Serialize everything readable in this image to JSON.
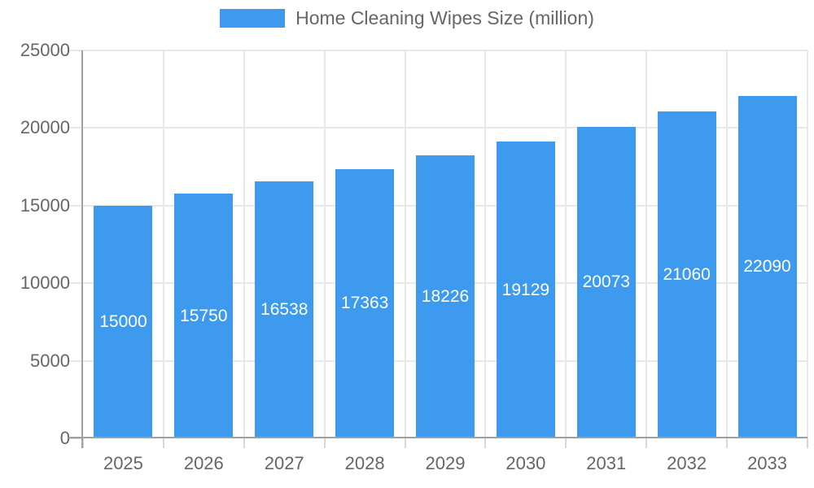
{
  "chart_data": {
    "type": "bar",
    "title": "",
    "legend": "Home Cleaning Wipes Size (million)",
    "series_name": "Home Cleaning Wipes Size (million)",
    "categories": [
      "2025",
      "2026",
      "2027",
      "2028",
      "2029",
      "2030",
      "2031",
      "2032",
      "2033"
    ],
    "values": [
      15000,
      15750,
      16538,
      17363,
      18226,
      19129,
      20073,
      21060,
      22090
    ],
    "data_labels": [
      "15000",
      "15750",
      "16538",
      "17363",
      "18226",
      "19129",
      "20073",
      "21060",
      "22090"
    ],
    "xlabel": "",
    "ylabel": "",
    "ylim": [
      0,
      25000
    ],
    "y_ticks": [
      0,
      5000,
      10000,
      15000,
      20000,
      25000
    ],
    "y_tick_labels": [
      "0",
      "5000",
      "10000",
      "15000",
      "20000",
      "25000"
    ],
    "grid": true,
    "legend_position": "top-center",
    "colors": {
      "bar": "#3D9AEF",
      "bar_label_text": "#FFFFFF",
      "axis_text": "#666666",
      "grid_line": "#E8E8E8",
      "axis_line": "#A0A0A0",
      "tick_line": "#D8D8D8",
      "background": "#FFFFFF"
    }
  }
}
